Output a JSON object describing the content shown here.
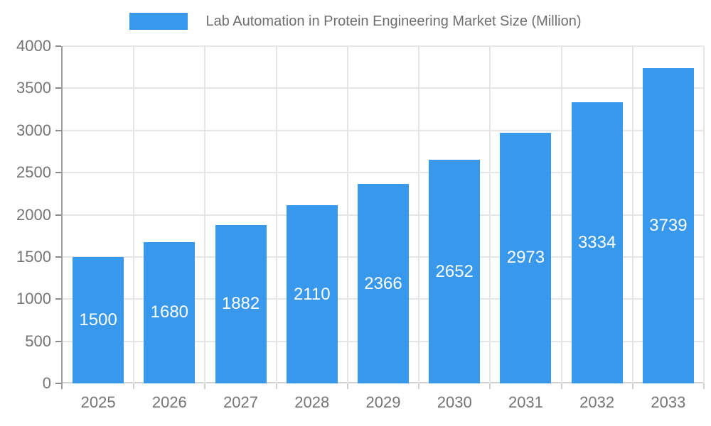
{
  "legend": {
    "label": "Lab Automation in Protein Engineering Market Size (Million)"
  },
  "chart_data": {
    "type": "bar",
    "title": "Lab Automation in Protein Engineering Market Size (Million)",
    "series_name": "Lab Automation in Protein Engineering Market Size (Million)",
    "categories": [
      "2025",
      "2026",
      "2027",
      "2028",
      "2029",
      "2030",
      "2031",
      "2032",
      "2033"
    ],
    "values": [
      1500,
      1680,
      1882,
      2110,
      2366,
      2652,
      2973,
      3334,
      3739
    ],
    "xlabel": "",
    "ylabel": "",
    "ylim": [
      0,
      4000
    ],
    "y_ticks": [
      0,
      500,
      1000,
      1500,
      2000,
      2500,
      3000,
      3500,
      4000
    ],
    "grid": true,
    "legend_position": "top",
    "value_labels": "inside-center-white",
    "colors": {
      "bar": "#3898ec",
      "value_label": "#ffffff",
      "axis_text": "#757575",
      "legend_text": "#6f6f6f",
      "gridline": "#e6e6e6",
      "axis_line_left": "#9e9e9e",
      "axis_line_bottom": "#d2d2d2",
      "tick": "#8c8c8c",
      "background": "#ffffff"
    }
  }
}
